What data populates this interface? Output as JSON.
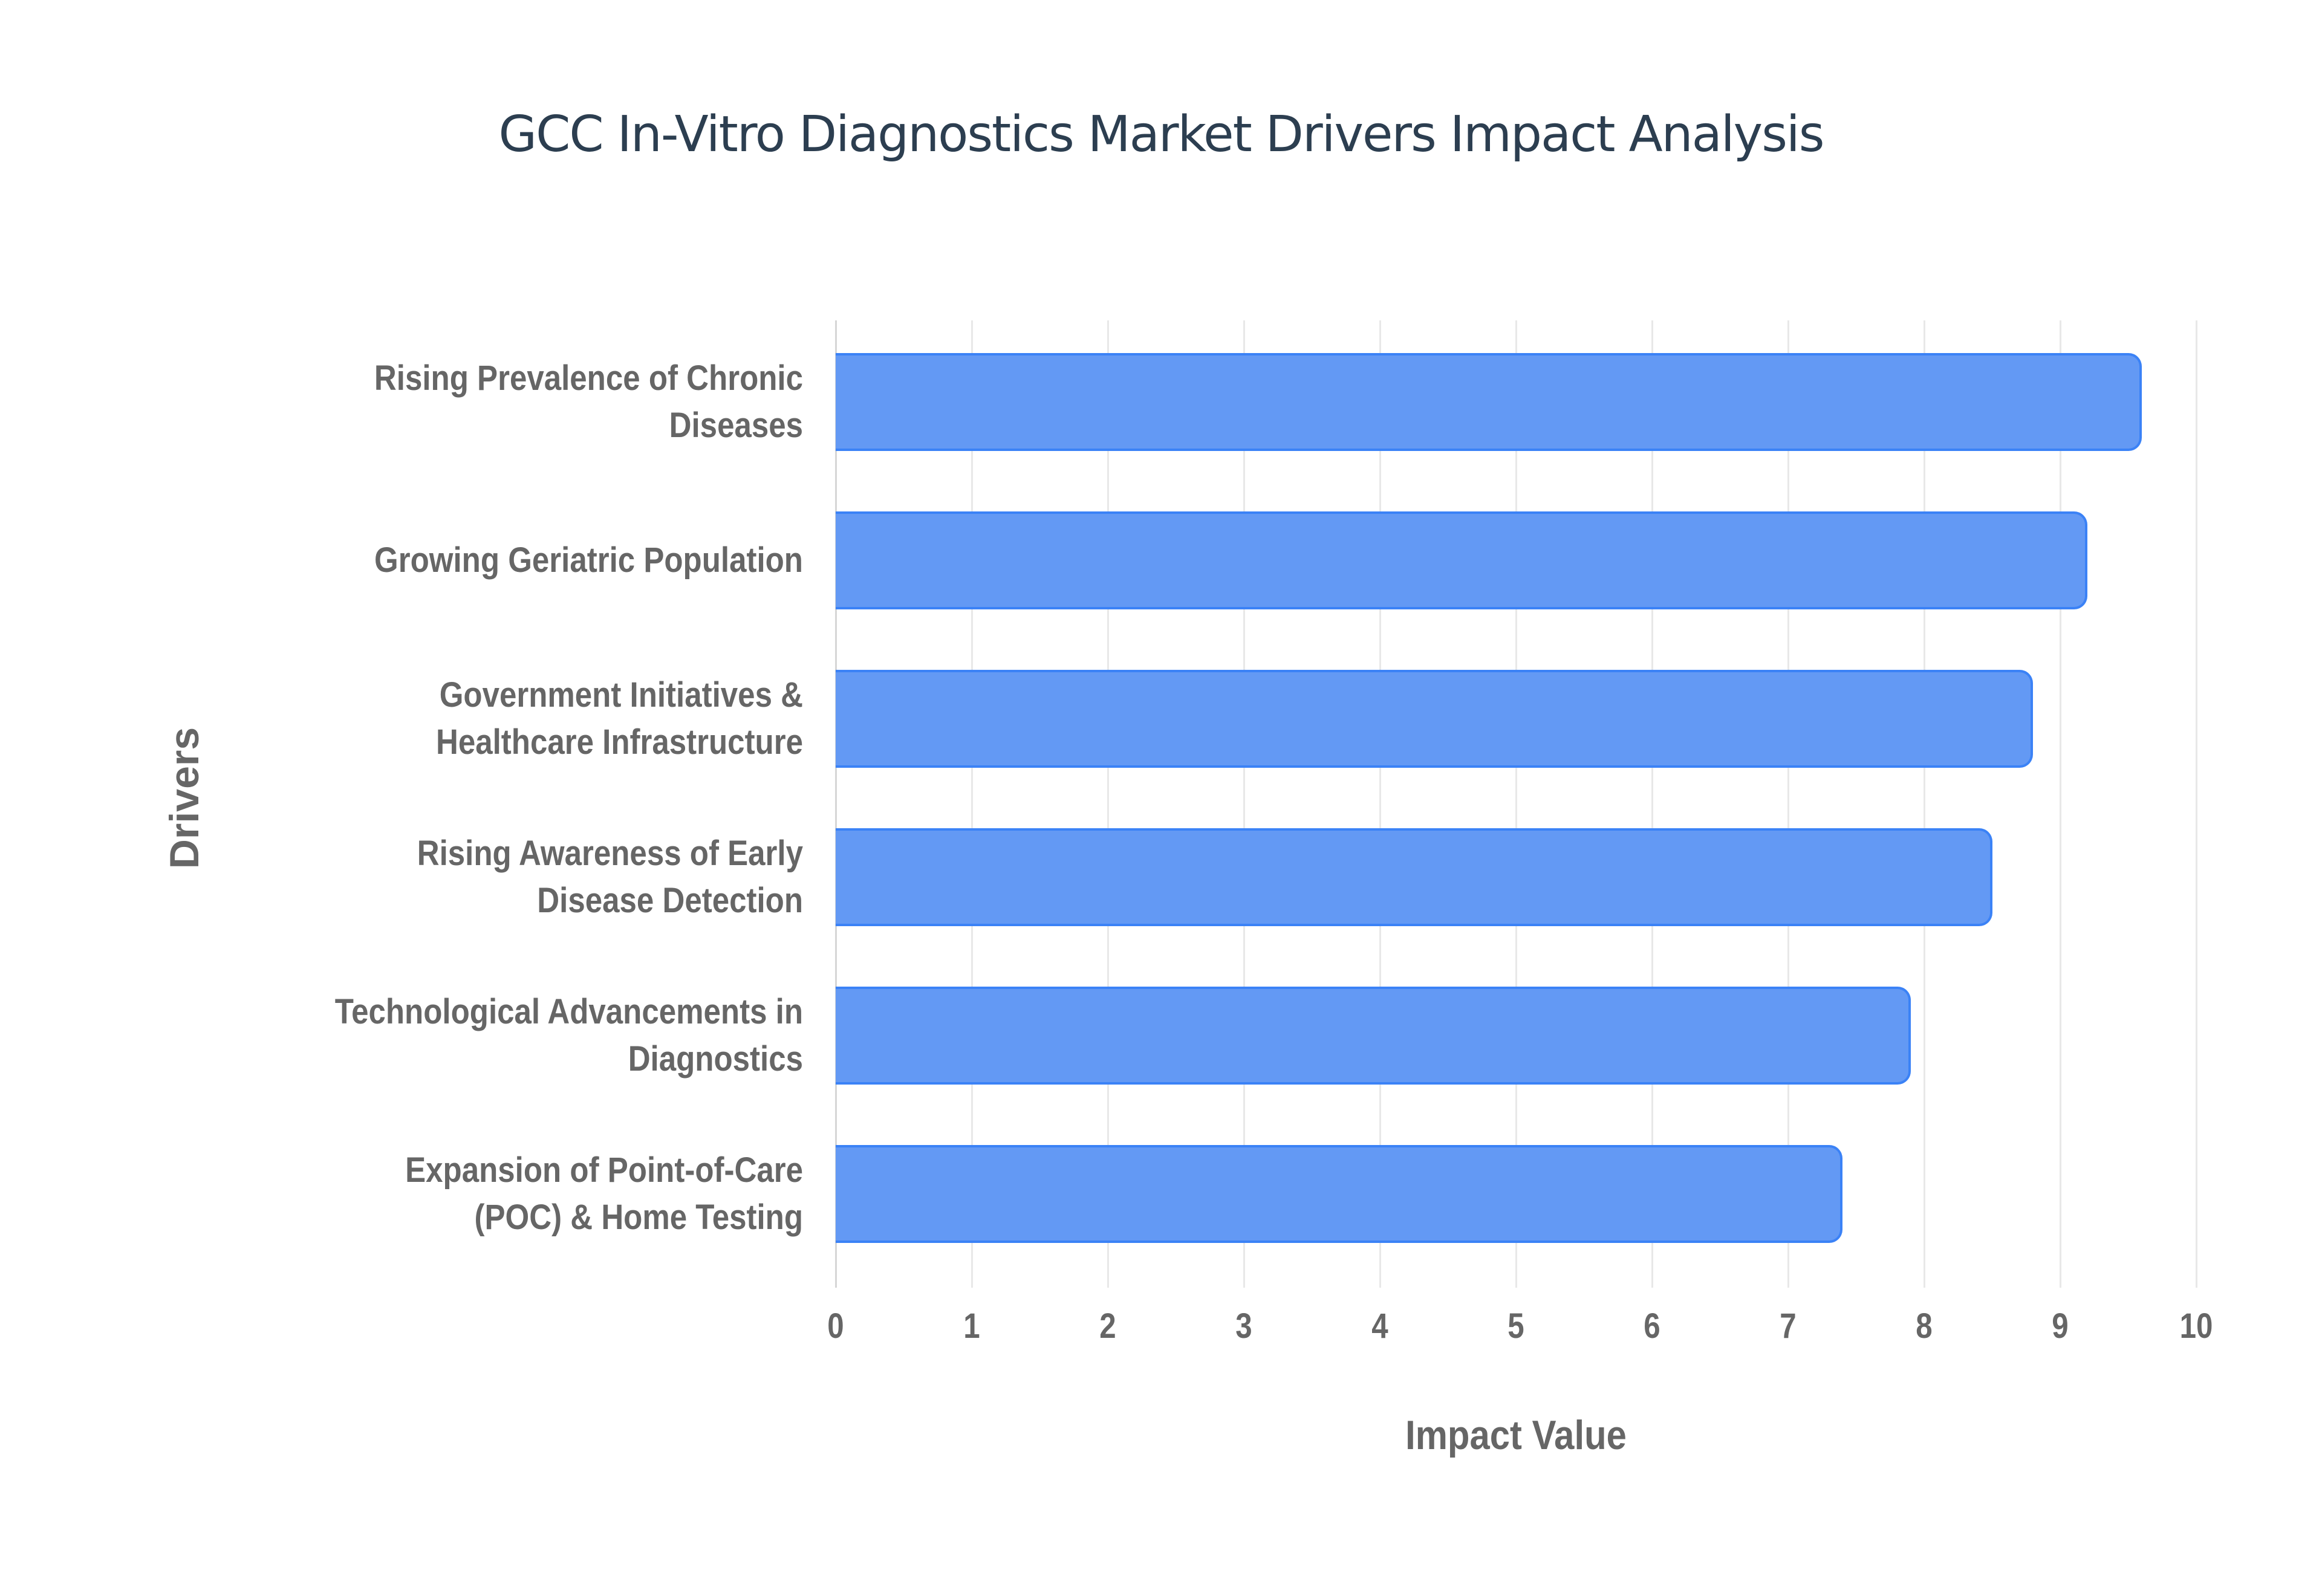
{
  "chart_data": {
    "type": "bar",
    "orientation": "horizontal",
    "title": "GCC In-Vitro Diagnostics Market Drivers Impact Analysis",
    "xlabel": "Impact Value",
    "ylabel": "Drivers",
    "xlim": [
      0,
      10
    ],
    "xticks": [
      "0",
      "1",
      "2",
      "3",
      "4",
      "5",
      "6",
      "7",
      "8",
      "9",
      "10"
    ],
    "grid": true,
    "legend": null,
    "categories": [
      "Rising Prevalence of Chronic Diseases",
      "Growing Geriatric Population",
      "Government Initiatives & Healthcare Infrastructure",
      "Rising Awareness of Early Disease Detection",
      "Technological Advancements in Diagnostics",
      "Expansion of Point-of-Care (POC) & Home Testing"
    ],
    "category_lines": [
      [
        "Rising Prevalence of Chronic",
        "Diseases"
      ],
      [
        "Growing Geriatric Population"
      ],
      [
        "Government Initiatives &",
        "Healthcare Infrastructure"
      ],
      [
        "Rising Awareness of Early",
        "Disease Detection"
      ],
      [
        "Technological Advancements in",
        "Diagnostics"
      ],
      [
        "Expansion of Point-of-Care",
        "(POC) & Home Testing"
      ]
    ],
    "values": [
      9.6,
      9.2,
      8.8,
      8.5,
      7.9,
      7.4
    ],
    "colors": {
      "bar_fill": "#6399f4",
      "bar_border": "#3b82f6",
      "title": "#2c3e50",
      "axis_text": "#666666",
      "grid": "#e8e8e8"
    }
  }
}
